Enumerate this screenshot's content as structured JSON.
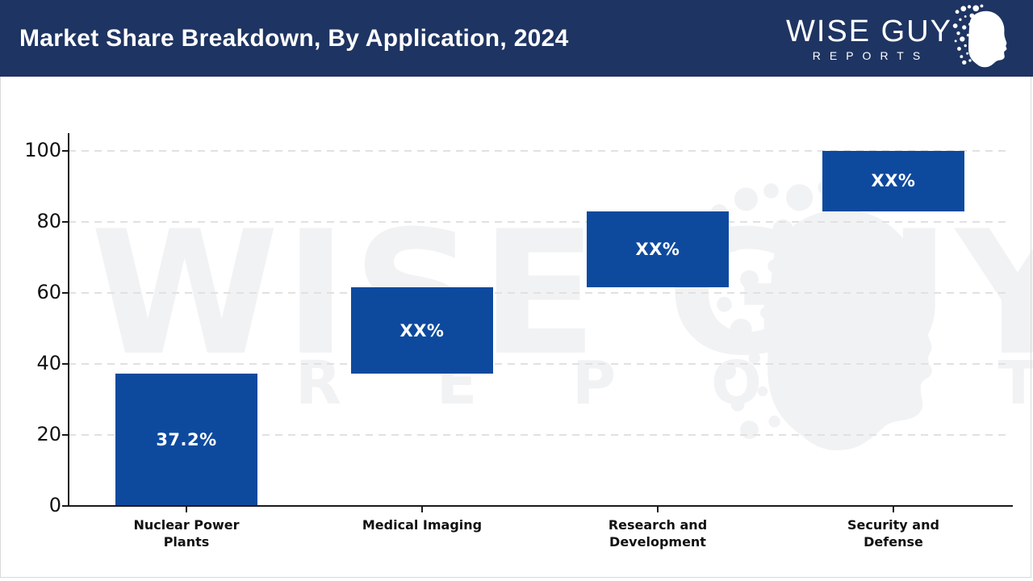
{
  "header": {
    "title": "Market Share Breakdown, By Application, 2024"
  },
  "logo": {
    "line1": "WISE GUY",
    "line2": "REPORTS",
    "head_icon": "dotted-head-profile"
  },
  "watermark": {
    "line1": "WISE GUY",
    "line2": "R E P O R T S",
    "head_icon": "dotted-head-profile"
  },
  "chart_data": {
    "type": "bar",
    "subtype": "waterfall-floating-bars",
    "title": "Market Share Breakdown, By Application, 2024",
    "categories": [
      {
        "name": "Nuclear Power Plants",
        "lines": [
          "Nuclear Power",
          "Plants"
        ]
      },
      {
        "name": "Medical Imaging",
        "lines": [
          "Medical Imaging"
        ]
      },
      {
        "name": "Research and Development",
        "lines": [
          "Research and",
          "Development"
        ]
      },
      {
        "name": "Security and Defense",
        "lines": [
          "Security and",
          "Defense"
        ]
      }
    ],
    "bars": [
      {
        "category": "Nuclear Power Plants",
        "from": 0,
        "to": 37.2,
        "label": "37.2%"
      },
      {
        "category": "Medical Imaging",
        "from": 37.2,
        "to": 61.5,
        "label": "XX%"
      },
      {
        "category": "Research and Development",
        "from": 61.5,
        "to": 83,
        "label": "XX%"
      },
      {
        "category": "Security and Defense",
        "from": 83,
        "to": 100,
        "label": "XX%"
      }
    ],
    "xlabel": "",
    "ylabel": "",
    "ylim": [
      0,
      100
    ],
    "yticks": [
      0,
      20,
      40,
      60,
      80,
      100
    ],
    "grid": "horizontal-dashed",
    "legend": "none",
    "colors": {
      "bar": "#0d4a9e",
      "bar_label": "#ffffff",
      "header_bg": "#1e3462",
      "gridline": "#e1e1e1",
      "axis": "#1a1a1a",
      "watermark": "#f1f2f4",
      "frame_border": "#d9d9d9"
    }
  }
}
